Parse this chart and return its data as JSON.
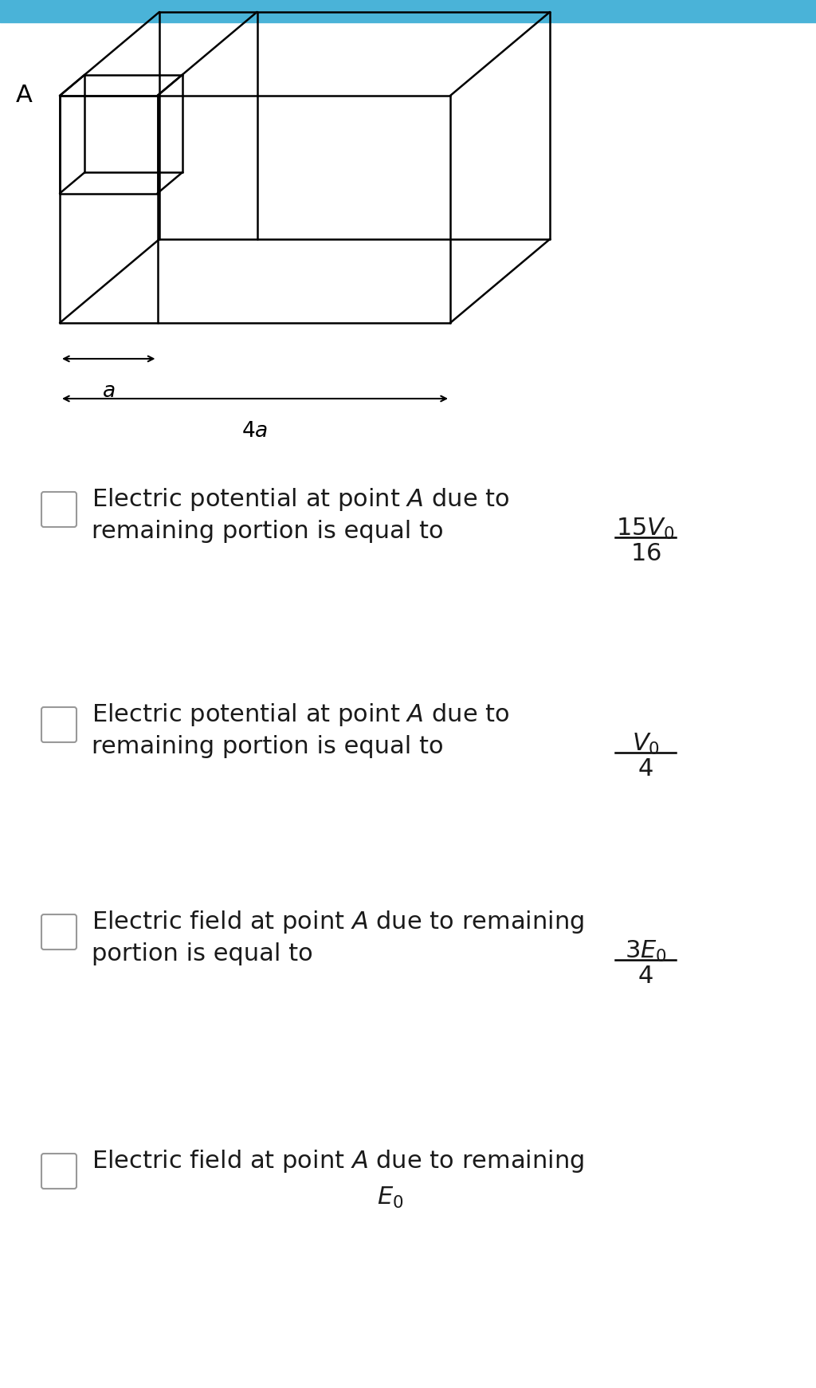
{
  "bg_color": "#ffffff",
  "header_color": "#4ab3d8",
  "fig_w": 10.24,
  "fig_h": 17.41,
  "dpi": 100,
  "lw": 1.8,
  "box_color": "black",
  "checkbox_color": "#999999",
  "text_color": "#1a1a1a",
  "options": [
    {
      "line1": "Electric potential at point $\\mathit{A}$ due to",
      "line2": "remaining portion is equal to",
      "num": "15V_0",
      "den": "16",
      "has_den": true
    },
    {
      "line1": "Electric potential at point $\\mathit{A}$ due to",
      "line2": "remaining portion is equal to",
      "num": "V_0",
      "den": "4",
      "has_den": true
    },
    {
      "line1": "Electric field at point $\\mathit{A}$ due to remaining",
      "line2": "portion is equal to",
      "num": "3E_0",
      "den": "4",
      "has_den": true
    },
    {
      "line1": "Electric field at point $\\mathit{A}$ due to remaining",
      "line2": "",
      "num": "E_0",
      "den": "",
      "has_den": false
    }
  ]
}
